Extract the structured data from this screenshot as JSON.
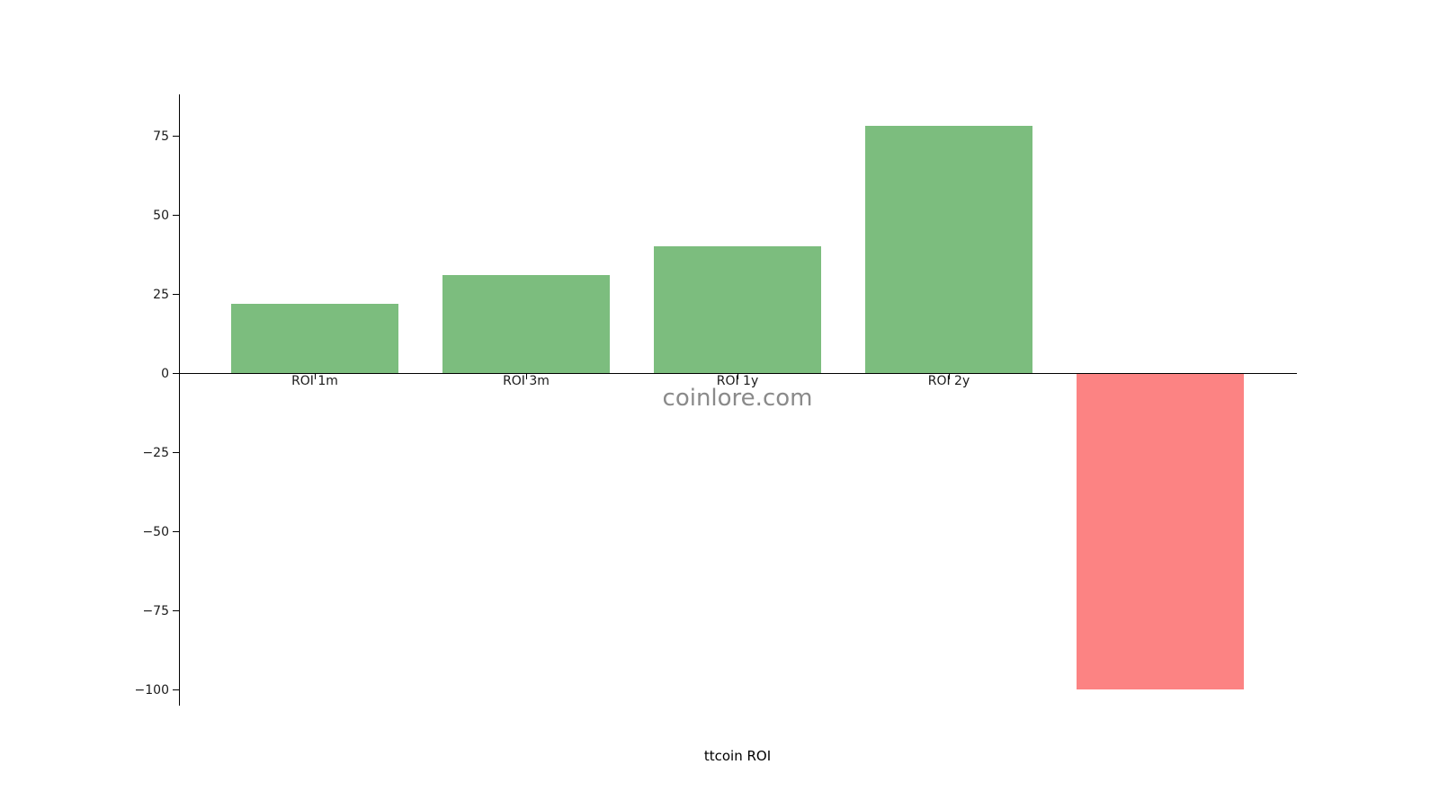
{
  "chart_data": {
    "type": "bar",
    "categories": [
      "ROI 1m",
      "ROI 3m",
      "ROI 1y",
      "ROI 2y",
      ""
    ],
    "values": [
      22,
      31,
      40,
      78,
      -100
    ],
    "yticks": [
      75,
      50,
      25,
      0,
      -25,
      -50,
      -75,
      -100
    ],
    "ylim": [
      -108,
      88
    ],
    "title": "",
    "xlabel": "ttcoin ROI",
    "ylabel": "",
    "watermark": "coinlore.com",
    "grid": false,
    "legend": "none",
    "colors": {
      "positive_bar": "#7cbd7e",
      "negative_bar": "#fc8383",
      "axis": "#000000",
      "tick_label": "#1a1a1a",
      "watermark": "#8a8a8a"
    }
  }
}
